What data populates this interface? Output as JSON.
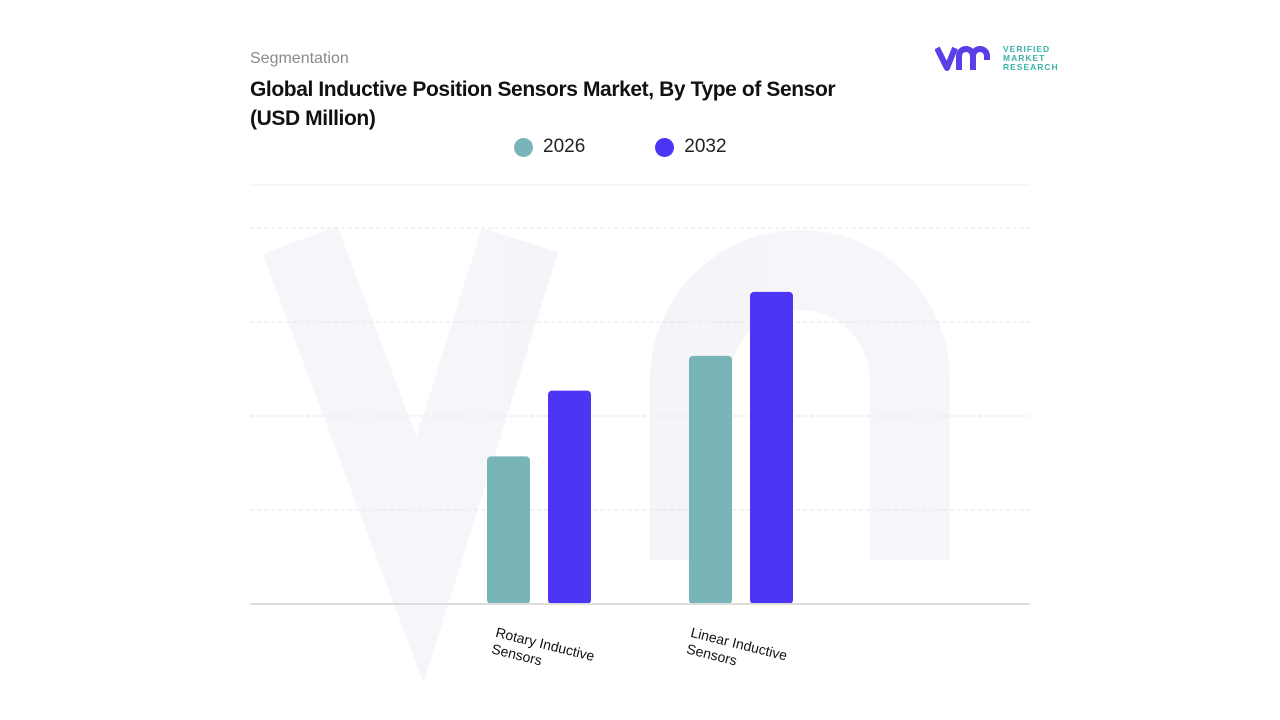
{
  "header": {
    "segment_label": "Segmentation",
    "title": "Global Inductive Position Sensors Market, By Type of Sensor (USD Million)"
  },
  "logo": {
    "line1": "VERIFIED",
    "line2": "MARKET",
    "line3": "RESEARCH",
    "brand_color": "#5b3ee8",
    "accent_color": "#3bb3a8"
  },
  "chart_data": {
    "type": "bar",
    "title": "Global Inductive Position Sensors Market, By Type of Sensor (USD Million)",
    "categories": [
      "Rotary Inductive Sensors",
      "Linear Inductive Sensors"
    ],
    "series": [
      {
        "name": "2026",
        "color": "#79b5b8",
        "values": [
          1.57,
          2.64
        ]
      },
      {
        "name": "2032",
        "color": "#4d35f5",
        "values": [
          2.27,
          3.32
        ]
      }
    ],
    "ylim": [
      0,
      4
    ],
    "grid": true,
    "y_tick_labels_shown": false,
    "legend_position": "top-center",
    "xlabel": "",
    "ylabel": ""
  }
}
